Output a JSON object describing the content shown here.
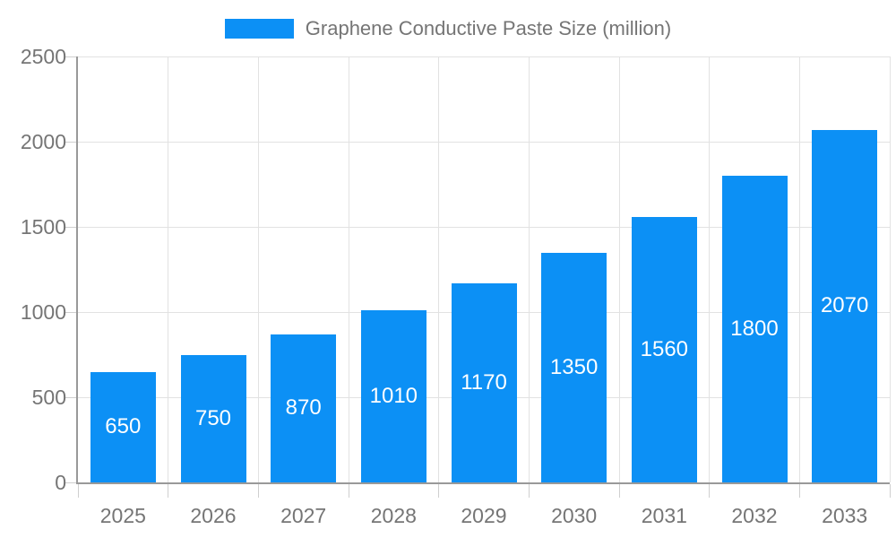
{
  "legend": {
    "label": "Graphene Conductive Paste Size (million)"
  },
  "colors": {
    "bar": "#0c90f5",
    "value_label": "#ffffff",
    "legend_text": "#757575",
    "axis_text": "#757575",
    "axis_line": "#999999",
    "grid_line": "#e2e2e2",
    "tick_line": "#cfcfcf",
    "background": "#ffffff"
  },
  "chart_data": {
    "type": "bar",
    "title": "Graphene Conductive Paste Size (million)",
    "categories": [
      "2025",
      "2026",
      "2027",
      "2028",
      "2029",
      "2030",
      "2031",
      "2032",
      "2033"
    ],
    "series": [
      {
        "name": "Graphene Conductive Paste Size (million)",
        "values": [
          650,
          750,
          870,
          1010,
          1170,
          1350,
          1560,
          1800,
          2070
        ]
      }
    ],
    "values": [
      650,
      750,
      870,
      1010,
      1170,
      1350,
      1560,
      1800,
      2070
    ],
    "xlabel": "",
    "ylabel": "",
    "ylim": [
      0,
      2500
    ],
    "yticks": [
      0,
      500,
      1000,
      1500,
      2000,
      2500
    ],
    "grid": true,
    "legend_position": "top",
    "value_label_position": "inside-center"
  }
}
